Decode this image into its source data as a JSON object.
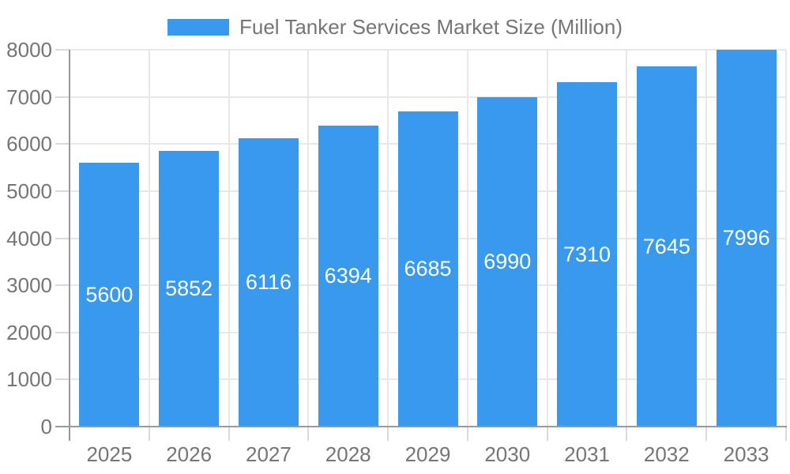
{
  "legend": {
    "label": "Fuel Tanker Services Market Size (Million)"
  },
  "colors": {
    "bar": "#3999ec",
    "text": "#757575",
    "value_label": "#ffffff",
    "grid": "#e8e8e8",
    "tick": "#d9d9d9",
    "axis": "#999999"
  },
  "chart_data": {
    "type": "bar",
    "title": "Fuel Tanker Services Market Size (Million)",
    "categories": [
      "2025",
      "2026",
      "2027",
      "2028",
      "2029",
      "2030",
      "2031",
      "2032",
      "2033"
    ],
    "series": [
      {
        "name": "Fuel Tanker Services Market Size (Million)",
        "values": [
          5600,
          5852,
          6116,
          6394,
          6685,
          6990,
          7310,
          7645,
          7996
        ]
      }
    ],
    "xlabel": "",
    "ylabel": "",
    "ylim": [
      0,
      8000
    ],
    "yticks": [
      0,
      1000,
      2000,
      3000,
      4000,
      5000,
      6000,
      7000,
      8000
    ],
    "grid": true,
    "legend_position": "top",
    "value_labels": "inside-center"
  }
}
